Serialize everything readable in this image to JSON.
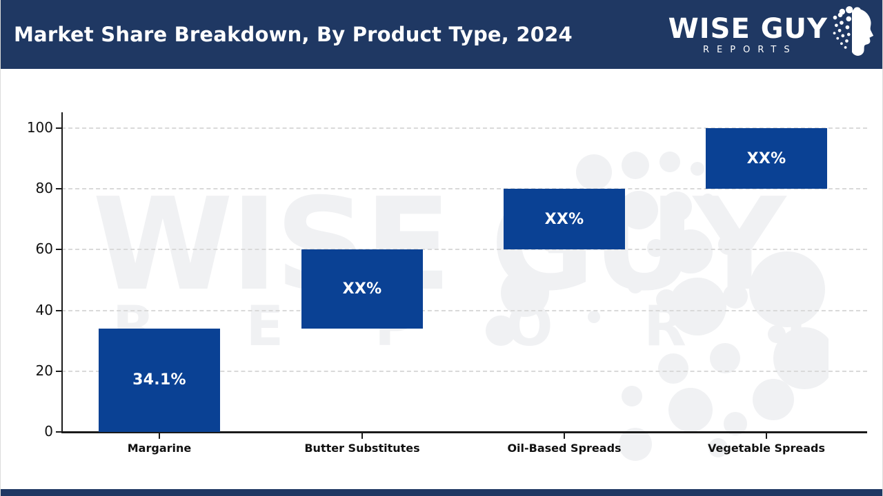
{
  "header": {
    "title": "Market Share Breakdown, By Product Type, 2024"
  },
  "logo": {
    "line1": "WISE GUY",
    "line2": "REPORTS"
  },
  "watermark": {
    "line1": "WISE GUY",
    "line2": "R E P O R T S"
  },
  "colors": {
    "header_bg": "#1f3863",
    "footer_bg": "#1f3863",
    "bar": "#0a4194",
    "bar_label": "#ffffff",
    "grid": "#d9d9d9",
    "axis": "#1a1a1a",
    "watermark": "#f0f1f3"
  },
  "chart_data": {
    "type": "bar",
    "subtype": "waterfall",
    "title": "Market Share Breakdown, By Product Type, 2024",
    "xlabel": "",
    "ylabel": "",
    "categories": [
      "Margarine",
      "Butter Substitutes",
      "Oil-Based Spreads",
      "Vegetable Spreads"
    ],
    "segments": [
      {
        "category": "Margarine",
        "label": "34.1%",
        "start": 0,
        "end": 34.1
      },
      {
        "category": "Butter Substitutes",
        "label": "XX%",
        "start": 34.1,
        "end": 60
      },
      {
        "category": "Oil-Based Spreads",
        "label": "XX%",
        "start": 60,
        "end": 80
      },
      {
        "category": "Vegetable Spreads",
        "label": "XX%",
        "start": 80,
        "end": 100
      }
    ],
    "yticks": [
      0,
      20,
      40,
      60,
      80,
      100
    ],
    "ylim": [
      0,
      105
    ],
    "grid": "horizontal-dashed",
    "legend": "none"
  }
}
